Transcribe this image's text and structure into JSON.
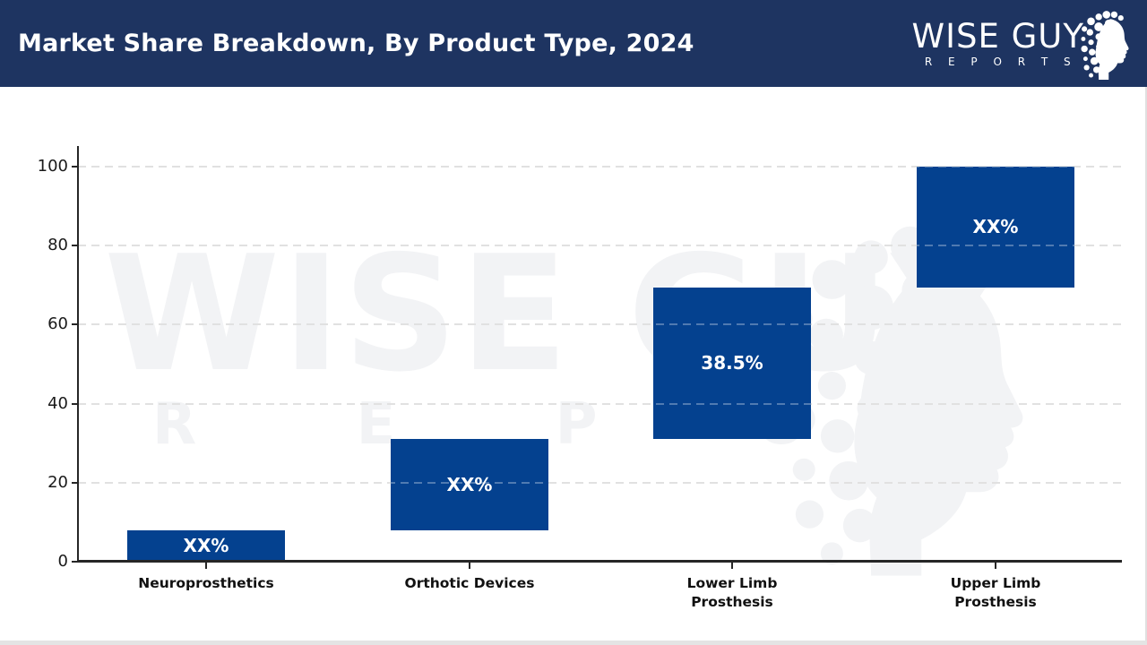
{
  "header": {
    "title": "Market Share Breakdown, By Product Type, 2024",
    "logo": {
      "line1": "WISE GUY",
      "line2": "R E P O R T S",
      "icon": "head-profile-dots-icon"
    }
  },
  "watermark": {
    "line1": "WISE GUY",
    "line2": "R E P O R T S",
    "icon": "head-profile-dots-icon"
  },
  "colors": {
    "header_bg": "#1e3461",
    "bar": "#04418f",
    "bar_label": "#ffffff",
    "axis": "#262626",
    "grid": "#d4d4d4",
    "watermark": "#f2f3f5"
  },
  "chart_data": {
    "type": "bar",
    "subtype": "floating-waterfall",
    "title": "Market Share Breakdown, By Product Type, 2024",
    "xlabel": "",
    "ylabel": "",
    "ylim": [
      0,
      105
    ],
    "yticks": [
      0,
      20,
      40,
      60,
      80,
      100
    ],
    "grid": "horizontal-dashed",
    "legend": "none",
    "categories": [
      [
        "Neuroprosthetics"
      ],
      [
        "Orthotic Devices"
      ],
      [
        "Lower Limb",
        "Prosthesis"
      ],
      [
        "Upper Limb",
        "Prosthesis"
      ]
    ],
    "segments": [
      {
        "name": "Neuroprosthetics",
        "start": 0,
        "end": 8,
        "label": "XX%"
      },
      {
        "name": "Orthotic Devices",
        "start": 8,
        "end": 31,
        "label": "XX%"
      },
      {
        "name": "Lower Limb Prosthesis",
        "start": 31,
        "end": 69.5,
        "label": "38.5%"
      },
      {
        "name": "Upper Limb Prosthesis",
        "start": 69.5,
        "end": 100,
        "label": "XX%"
      }
    ]
  }
}
